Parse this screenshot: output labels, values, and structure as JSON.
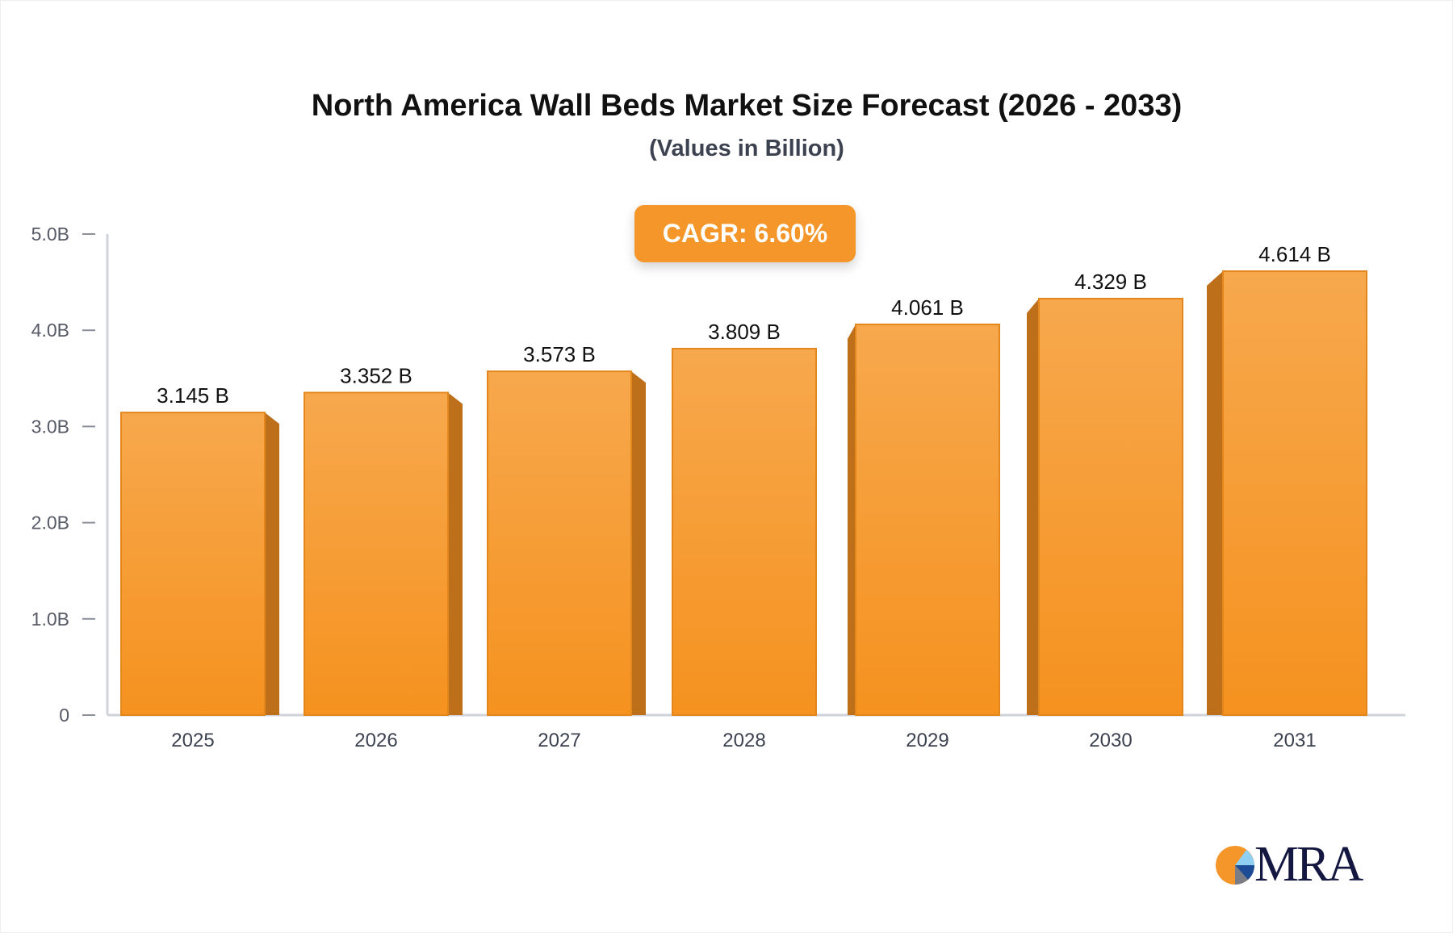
{
  "chart_data": {
    "type": "bar",
    "title": "North America Wall Beds Market Size Forecast (2026 - 2033)",
    "subtitle": "(Values in Billion)",
    "annotation": "CAGR: 6.60%",
    "categories": [
      "2025",
      "2026",
      "2027",
      "2028",
      "2029",
      "2030",
      "2031"
    ],
    "values": [
      3.145,
      3.352,
      3.573,
      3.809,
      4.061,
      4.329,
      4.614
    ],
    "data_labels": [
      "3.145 B",
      "3.352 B",
      "3.573 B",
      "3.809 B",
      "4.061 B",
      "4.329 B",
      "4.614 B"
    ],
    "yticks": [
      0,
      1,
      2,
      3,
      4,
      5
    ],
    "ytick_labels": [
      "0",
      "1.0B",
      "2.0B",
      "3.0B",
      "4.0B",
      "5.0B"
    ],
    "ylim": [
      0,
      5
    ],
    "xlabel": "",
    "ylabel": "",
    "grid": false,
    "colors": {
      "bar": "#f5962a",
      "bar_top": "#f7a84d",
      "bar_side": "#bd6f1a",
      "badge": "#f5962a",
      "axis": "#d0d3da"
    }
  },
  "logo": {
    "text": "MRA"
  }
}
